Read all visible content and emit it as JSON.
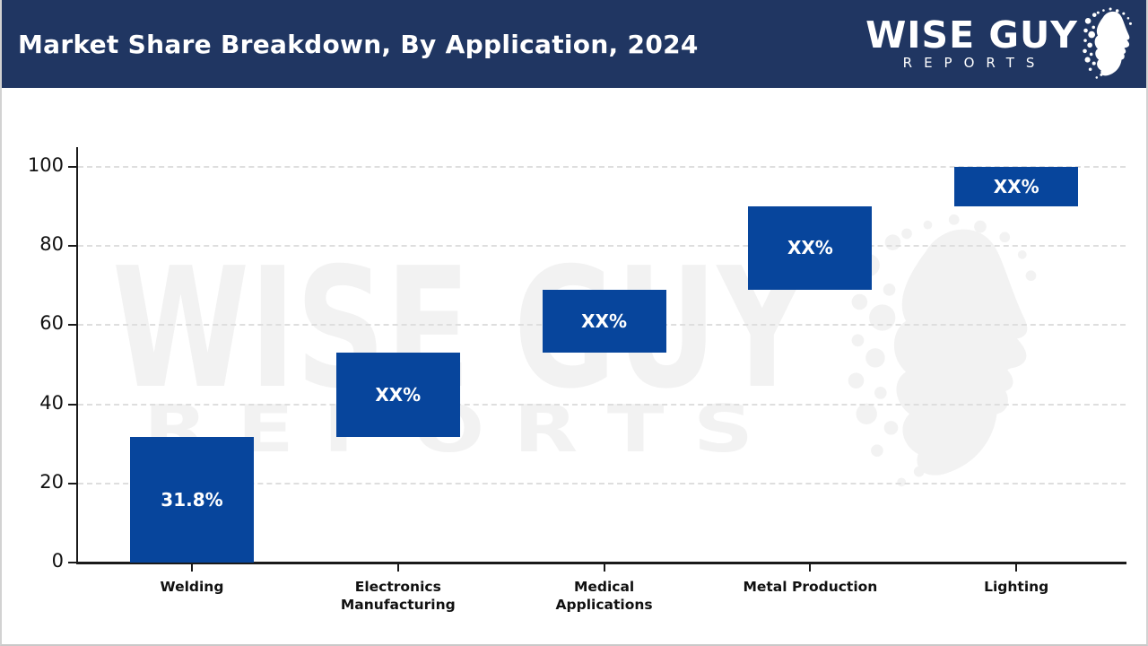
{
  "header": {
    "title": "Market Share Breakdown, By Application, 2024",
    "logo": {
      "line1": "WISE GUY",
      "line2": "REPORTS"
    }
  },
  "watermark": {
    "line1": "WISE GUY",
    "line2": "R E P O R T S"
  },
  "chart_data": {
    "type": "bar",
    "subtype": "waterfall-segments",
    "title": "Market Share Breakdown, By Application, 2024",
    "categories": [
      "Welding",
      "Electronics Manufacturing",
      "Medical Applications",
      "Metal Production",
      "Lighting"
    ],
    "category_lines": [
      [
        "Welding"
      ],
      [
        "Electronics",
        "Manufacturing"
      ],
      [
        "Medical",
        "Applications"
      ],
      [
        "Metal Production"
      ],
      [
        "Lighting"
      ]
    ],
    "segments": [
      {
        "category": "Welding",
        "start": 0,
        "end": 31.8,
        "label": "31.8%"
      },
      {
        "category": "Electronics Manufacturing",
        "start": 31.8,
        "end": 53.1,
        "label": "XX%"
      },
      {
        "category": "Medical Applications",
        "start": 53.1,
        "end": 68.9,
        "label": "XX%"
      },
      {
        "category": "Metal Production",
        "start": 69,
        "end": 90,
        "label": "XX%"
      },
      {
        "category": "Lighting",
        "start": 90,
        "end": 100,
        "label": "XX%"
      }
    ],
    "yticks": [
      0,
      20,
      40,
      60,
      80,
      100
    ],
    "ylim": [
      0,
      100
    ],
    "xlabel": "",
    "ylabel": "",
    "grid": {
      "horizontal": true,
      "style": "dashed"
    },
    "legend": null,
    "colors": {
      "bar": "#07459c",
      "grid": "#dedede",
      "axis": "#1a1a1a",
      "bar_label_text": "#ffffff"
    }
  },
  "frame": {
    "header_bg": "#203662",
    "canvas_bg": "#ffffff",
    "watermark_color": "#f2f2f2"
  }
}
